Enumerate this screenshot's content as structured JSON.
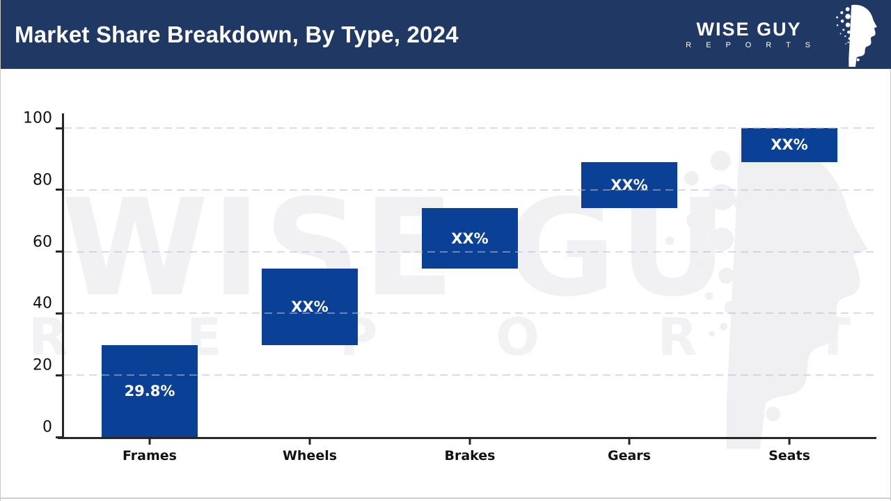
{
  "header": {
    "title": "Market Share Breakdown, By Type, 2024",
    "bg_color": "#1f3864",
    "logo": {
      "line1": "WISE GUY",
      "line2": "R E P O R T S"
    }
  },
  "watermark": {
    "line1": "WISE GUY",
    "line2": "R E P O R T S"
  },
  "chart_data": {
    "type": "bar",
    "subtype": "waterfall-floating-bars",
    "title": "Market Share Breakdown, By Type, 2024",
    "xlabel": "",
    "ylabel": "",
    "categories": [
      "Frames",
      "Wheels",
      "Brakes",
      "Gears",
      "Seats"
    ],
    "segments": [
      {
        "category": "Frames",
        "start": 0,
        "end": 29.8,
        "label": "29.8%"
      },
      {
        "category": "Wheels",
        "start": 29.8,
        "end": 54.4,
        "label": "XX%"
      },
      {
        "category": "Brakes",
        "start": 54.4,
        "end": 74.1,
        "label": "XX%"
      },
      {
        "category": "Gears",
        "start": 74.1,
        "end": 89.0,
        "label": "XX%"
      },
      {
        "category": "Seats",
        "start": 89.0,
        "end": 100.0,
        "label": "XX%"
      }
    ],
    "y_ticks": [
      0,
      20,
      40,
      60,
      80,
      100
    ],
    "ylim": [
      0,
      104.5
    ],
    "grid": "dashed-horizontal",
    "legend": "none",
    "bar_color": "#0a4096",
    "bar_label_color": "#ffffff",
    "axis_color": "#262626"
  }
}
